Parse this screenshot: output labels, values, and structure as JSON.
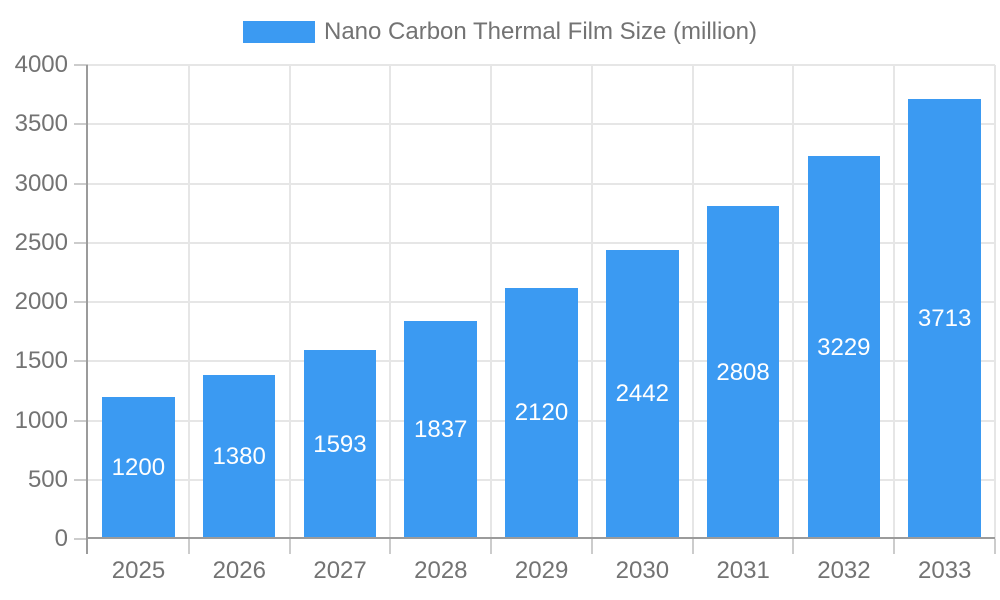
{
  "chart_data": {
    "type": "bar",
    "title": "Nano Carbon Thermal Film Size (million)",
    "legend": {
      "label": "Nano Carbon Thermal Film Size (million)",
      "position": "top"
    },
    "categories": [
      "2025",
      "2026",
      "2027",
      "2028",
      "2029",
      "2030",
      "2031",
      "2032",
      "2033"
    ],
    "values": [
      1200,
      1380,
      1593,
      1837,
      2120,
      2442,
      2808,
      3229,
      3713
    ],
    "value_labels": [
      "1200",
      "1380",
      "1593",
      "1837",
      "2120",
      "2442",
      "2808",
      "3229",
      "3713"
    ],
    "xlabel": "",
    "ylabel": "",
    "ylim": [
      0,
      4000
    ],
    "ytick_step": 500,
    "yticks": [
      0,
      500,
      1000,
      1500,
      2000,
      2500,
      3000,
      3500,
      4000
    ],
    "grid": "on",
    "colors": {
      "bar": "#3B9AF2",
      "gridline": "#E6E6E6",
      "axis_border": "#9B9B9B",
      "tick_mark": "#CCCCCC",
      "tick_text": "#737373",
      "legend_text": "#737373",
      "value_label_text": "#FFFFFF",
      "background": "#FFFFFF"
    }
  }
}
